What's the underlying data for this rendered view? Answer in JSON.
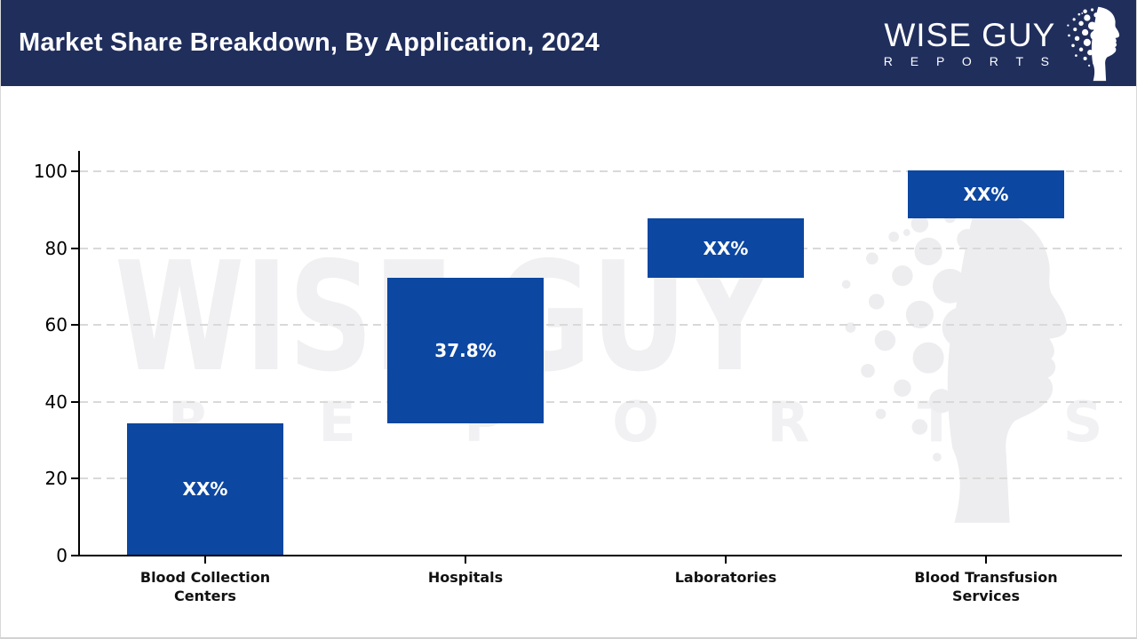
{
  "header": {
    "title": "Market Share Breakdown, By Application, 2024",
    "logo": {
      "name": "WISE GUY",
      "subname": "R E P O R T S",
      "head_icon": "dotted-head-profile"
    }
  },
  "watermark": {
    "line1": "WISE GUY",
    "line2": "R E P O R T S"
  },
  "colors": {
    "header_bg": "#202e5c",
    "bar": "#0c47a1",
    "grid": "#d9d9d9",
    "axis": "#000000",
    "bar_label": "#ffffff",
    "watermark": "#f0f0f2",
    "page_border": "#d8d8d8"
  },
  "chart_data": {
    "type": "bar",
    "subtype": "waterfall",
    "title": "Market Share Breakdown, By Application, 2024",
    "categories": [
      "Blood Collection Centers",
      "Hospitals",
      "Laboratories",
      "Blood Transfusion Services"
    ],
    "category_label_lines": [
      [
        "Blood Collection",
        "Centers"
      ],
      [
        "Hospitals"
      ],
      [
        "Laboratories"
      ],
      [
        "Blood Transfusion",
        "Services"
      ]
    ],
    "segments": [
      {
        "category": "Blood Collection Centers",
        "start": 0,
        "end": 34.2,
        "label": "XX%"
      },
      {
        "category": "Hospitals",
        "start": 34.2,
        "end": 72,
        "label": "37.8%"
      },
      {
        "category": "Laboratories",
        "start": 72,
        "end": 87.5,
        "label": "XX%"
      },
      {
        "category": "Blood Transfusion Services",
        "start": 87.5,
        "end": 100,
        "label": "XX%"
      }
    ],
    "xlabel": "",
    "ylabel": "",
    "ylim": [
      0,
      100
    ],
    "yticks": [
      0,
      20,
      40,
      60,
      80,
      100
    ],
    "grid": "horizontal-dashed",
    "legend": "none"
  }
}
